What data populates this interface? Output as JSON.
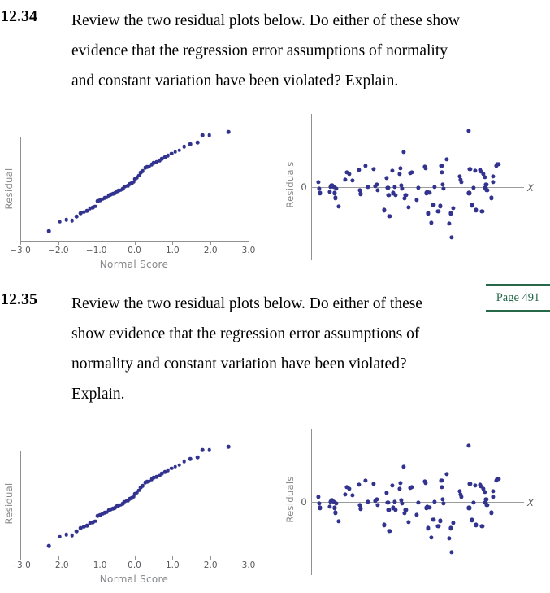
{
  "colors": {
    "dot": "#32338E",
    "axis_line": "#8F9193",
    "tick_label": "#57585B",
    "axis_label": "#85878A",
    "body_text": "#000000",
    "badge_green": "#26684A"
  },
  "exercises": [
    {
      "number": "12.34",
      "lines": [
        "Review the two residual plots below. Do either of these show",
        "evidence that the regression error assumptions of normality",
        "and constant variation have been violated? Explain."
      ]
    },
    {
      "number": "12.35",
      "lines": [
        "Review the two residual plots below. Do either of these",
        "show evidence that the regression error assumptions of",
        "normality and constant variation have been violated?",
        "Explain."
      ]
    }
  ],
  "page_badge": {
    "label": "Page 491"
  },
  "chart_data": [
    {
      "id": "normal-probability-plot",
      "type": "scatter",
      "appears_in": [
        "12.34",
        "12.35"
      ],
      "xlabel": "Normal Score",
      "ylabel": "Residual",
      "xticks": [
        "−3.0",
        "−2.0",
        "−1.0",
        "0.0",
        "1.0",
        "2.0",
        "3.0"
      ],
      "xlim": [
        -3.0,
        3.0
      ],
      "ylim": [
        -2.5,
        2.1
      ],
      "points": [
        [
          -2.25,
          -2.1
        ],
        [
          -1.96,
          -1.72
        ],
        [
          -1.79,
          -1.63
        ],
        [
          -1.64,
          -1.67
        ],
        [
          -1.52,
          -1.5
        ],
        [
          -1.42,
          -1.36
        ],
        [
          -1.33,
          -1.31
        ],
        [
          -1.25,
          -1.27
        ],
        [
          -1.17,
          -1.16
        ],
        [
          -1.1,
          -1.12
        ],
        [
          -1.03,
          -1.08
        ],
        [
          -0.97,
          -0.86
        ],
        [
          -0.9,
          -0.82
        ],
        [
          -0.84,
          -0.78
        ],
        [
          -0.78,
          -0.73
        ],
        [
          -0.73,
          -0.7
        ],
        [
          -0.67,
          -0.62
        ],
        [
          -0.62,
          -0.58
        ],
        [
          -0.56,
          -0.55
        ],
        [
          -0.51,
          -0.52
        ],
        [
          -0.46,
          -0.45
        ],
        [
          -0.41,
          -0.42
        ],
        [
          -0.36,
          -0.4
        ],
        [
          -0.31,
          -0.35
        ],
        [
          -0.26,
          -0.27
        ],
        [
          -0.21,
          -0.24
        ],
        [
          -0.17,
          -0.22
        ],
        [
          -0.12,
          -0.14
        ],
        [
          -0.07,
          -0.12
        ],
        [
          -0.02,
          -0.06
        ],
        [
          0.02,
          0.05
        ],
        [
          0.07,
          0.12
        ],
        [
          0.12,
          0.2
        ],
        [
          0.17,
          0.32
        ],
        [
          0.22,
          0.4
        ],
        [
          0.28,
          0.52
        ],
        [
          0.33,
          0.56
        ],
        [
          0.39,
          0.58
        ],
        [
          0.45,
          0.66
        ],
        [
          0.51,
          0.72
        ],
        [
          0.58,
          0.77
        ],
        [
          0.65,
          0.82
        ],
        [
          0.72,
          0.9
        ],
        [
          0.8,
          0.96
        ],
        [
          0.88,
          1.04
        ],
        [
          0.97,
          1.12
        ],
        [
          1.07,
          1.18
        ],
        [
          1.18,
          1.26
        ],
        [
          1.31,
          1.4
        ],
        [
          1.47,
          1.5
        ],
        [
          1.66,
          1.58
        ],
        [
          1.79,
          1.88
        ],
        [
          1.97,
          1.88
        ],
        [
          2.47,
          2.02
        ]
      ]
    },
    {
      "id": "residuals-vs-x-plot",
      "type": "scatter",
      "appears_in": [
        "12.34",
        "12.35"
      ],
      "xlabel": "X",
      "ylabel": "Residuals",
      "zero_label": "0",
      "xlim": [
        0,
        10
      ],
      "ylim": [
        -4.5,
        4.5
      ],
      "points": [
        [
          0.33,
          0.3
        ],
        [
          0.39,
          -0.09
        ],
        [
          0.42,
          -0.37
        ],
        [
          0.87,
          -0.3
        ],
        [
          0.9,
          0.0
        ],
        [
          0.97,
          0.09
        ],
        [
          1.06,
          0.0
        ],
        [
          1.1,
          -0.37
        ],
        [
          1.13,
          -0.67
        ],
        [
          1.18,
          -0.09
        ],
        [
          1.29,
          -1.2
        ],
        [
          1.6,
          0.47
        ],
        [
          1.69,
          0.92
        ],
        [
          1.79,
          0.8
        ],
        [
          1.95,
          0.39
        ],
        [
          2.24,
          1.05
        ],
        [
          2.3,
          -0.2
        ],
        [
          2.33,
          -0.42
        ],
        [
          2.56,
          1.3
        ],
        [
          2.68,
          0.0
        ],
        [
          2.94,
          1.09
        ],
        [
          3.0,
          0.05
        ],
        [
          3.09,
          0.17
        ],
        [
          3.13,
          -0.2
        ],
        [
          3.42,
          -1.42
        ],
        [
          3.55,
          0.54
        ],
        [
          3.6,
          -0.04
        ],
        [
          3.64,
          -0.5
        ],
        [
          3.68,
          -1.8
        ],
        [
          3.81,
          1.0
        ],
        [
          3.85,
          -0.37
        ],
        [
          3.93,
          0.0
        ],
        [
          3.96,
          -0.5
        ],
        [
          4.15,
          0.8
        ],
        [
          4.19,
          1.17
        ],
        [
          4.24,
          0.09
        ],
        [
          4.27,
          -0.09
        ],
        [
          4.34,
          2.14
        ],
        [
          4.4,
          -0.7
        ],
        [
          4.44,
          -0.5
        ],
        [
          4.57,
          -1.25
        ],
        [
          4.66,
          0.84
        ],
        [
          4.74,
          0.92
        ],
        [
          4.95,
          -0.79
        ],
        [
          5.04,
          -0.04
        ],
        [
          5.33,
          1.25
        ],
        [
          5.38,
          1.17
        ],
        [
          5.42,
          -0.37
        ],
        [
          5.46,
          -0.29
        ],
        [
          5.48,
          -1.62
        ],
        [
          5.55,
          -0.34
        ],
        [
          5.64,
          -2.2
        ],
        [
          5.74,
          -1.09
        ],
        [
          5.8,
          0.0
        ],
        [
          5.97,
          -1.5
        ],
        [
          6.06,
          -1.17
        ],
        [
          6.12,
          1.3
        ],
        [
          6.15,
          0.89
        ],
        [
          6.18,
          0.14
        ],
        [
          6.22,
          -0.09
        ],
        [
          6.37,
          1.71
        ],
        [
          6.48,
          -2.25
        ],
        [
          6.56,
          -1.62
        ],
        [
          6.6,
          -3.09
        ],
        [
          6.69,
          -1.29
        ],
        [
          6.98,
          0.64
        ],
        [
          7.01,
          0.47
        ],
        [
          7.07,
          0.3
        ],
        [
          7.4,
          3.45
        ],
        [
          7.42,
          -0.37
        ],
        [
          7.46,
          1.09
        ],
        [
          7.55,
          -1.12
        ],
        [
          7.62,
          -0.04
        ],
        [
          7.71,
          1.0
        ],
        [
          7.75,
          -1.42
        ],
        [
          7.93,
          1.05
        ],
        [
          7.97,
          0.97
        ],
        [
          8.03,
          -1.5
        ],
        [
          8.09,
          0.8
        ],
        [
          8.16,
          0.59
        ],
        [
          8.18,
          -0.04
        ],
        [
          8.22,
          0.17
        ],
        [
          8.26,
          -0.2
        ],
        [
          8.47,
          -0.67
        ],
        [
          8.54,
          0.64
        ],
        [
          8.56,
          0.3
        ],
        [
          8.69,
          1.3
        ],
        [
          8.73,
          1.39
        ],
        [
          8.82,
          1.39
        ]
      ]
    }
  ]
}
